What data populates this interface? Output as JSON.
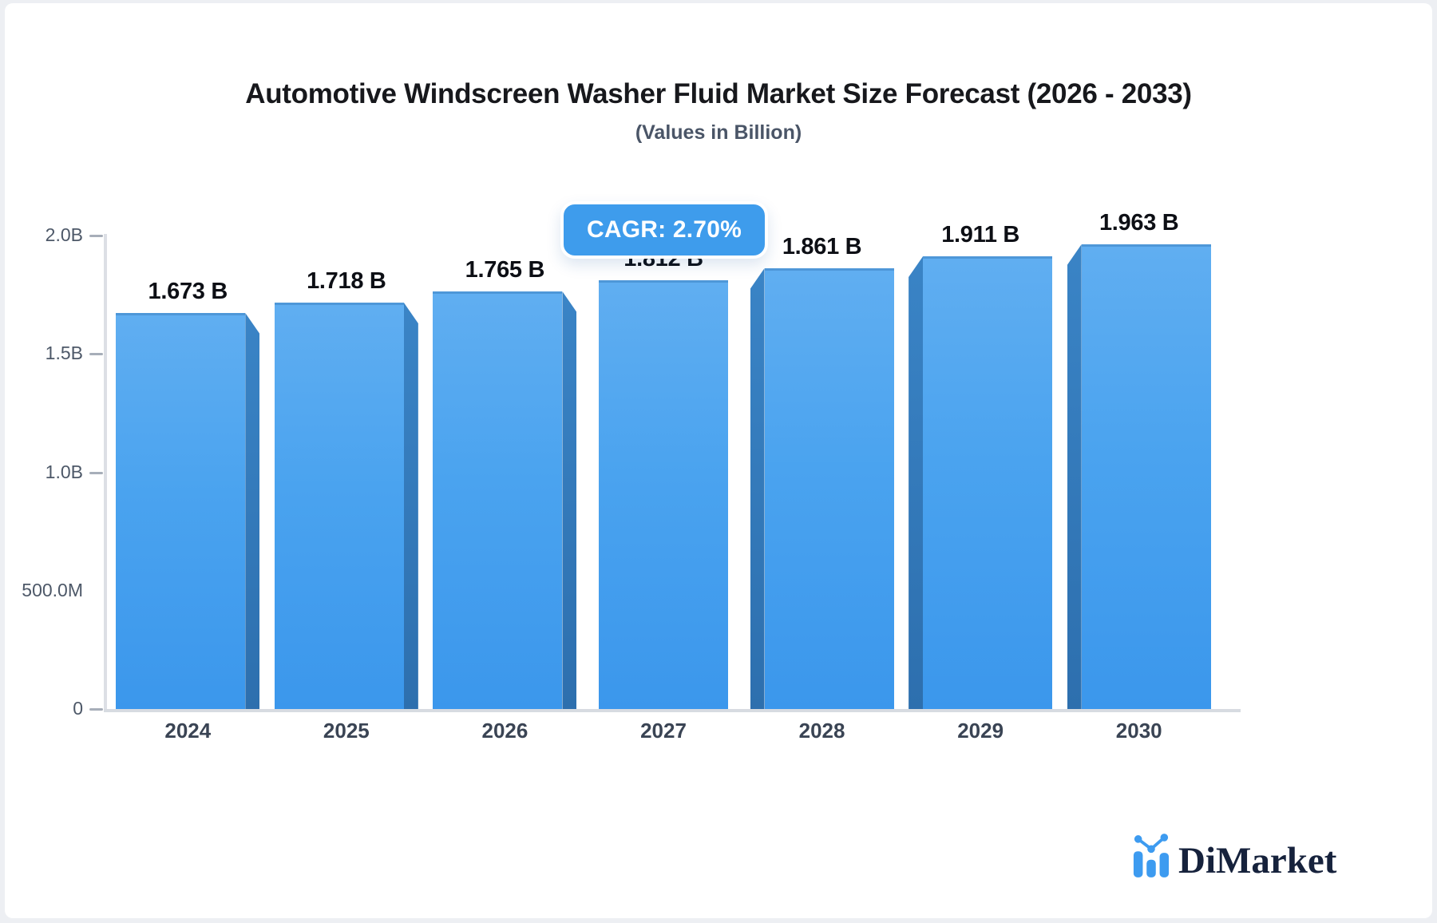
{
  "header": {
    "title": "Automotive Windscreen Washer Fluid Market Size Forecast (2026 - 2033)",
    "subtitle": "(Values in Billion)"
  },
  "badge": {
    "label": "CAGR: 2.70%",
    "color": "#3e9cec"
  },
  "watermark": {
    "brand": "DiMarket",
    "icon": "bar-line-chart-icon",
    "icon_color": "#3d9bf0",
    "text_color": "#16223c"
  },
  "axis": {
    "y_ticks": [
      {
        "label": "2.0B",
        "value": 2.0,
        "dash": true
      },
      {
        "label": "1.5B",
        "value": 1.5,
        "dash": true
      },
      {
        "label": "1.0B",
        "value": 1.0,
        "dash": true
      },
      {
        "label": "500.0M",
        "value": 0.5,
        "dash": false
      },
      {
        "label": "0",
        "value": 0.0,
        "dash": true
      }
    ]
  },
  "chart_data": {
    "type": "bar",
    "title": "Automotive Windscreen Washer Fluid Market Size Forecast (2026 - 2033)",
    "subtitle": "(Values in Billion)",
    "categories": [
      "2024",
      "2025",
      "2026",
      "2027",
      "2028",
      "2029",
      "2030"
    ],
    "values": [
      1.673,
      1.718,
      1.765,
      1.812,
      1.861,
      1.911,
      1.963
    ],
    "data_labels": [
      "1.673 B",
      "1.718 B",
      "1.765 B",
      "1.812 B",
      "1.861 B",
      "1.911 B",
      "1.963 B"
    ],
    "unit": "Billion",
    "cagr": "2.70%",
    "ylim": [
      0,
      2.0
    ],
    "ylabel": "",
    "xlabel": "",
    "grid": false,
    "legend": null,
    "bar_color_top": "#60aef1",
    "bar_color_bottom": "#3b97ec",
    "bar_side_color": "#2f74b3"
  }
}
